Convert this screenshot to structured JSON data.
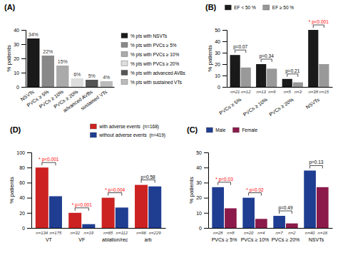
{
  "chart_data": [
    {
      "type": "bar",
      "title": "(A)",
      "y_label": "% patients",
      "categories": [
        "NSVTs",
        "PVCs ≥ 5%",
        "PVCs ≥ 10%",
        "PVCs ≥ 20%",
        "advanced AVBs",
        "sustained VTs"
      ],
      "series": [
        {
          "name": "% pts with NSVTs",
          "color": "#1a1a1a",
          "values": [
            34,
            null,
            null,
            null,
            null,
            null
          ],
          "value_labels": [
            "34%",
            null,
            null,
            null,
            null,
            null
          ]
        },
        {
          "name": "% pts with PVCs ≥ 5%",
          "color": "#888888",
          "values": [
            null,
            22,
            null,
            null,
            null,
            null
          ],
          "value_labels": [
            null,
            "22%",
            null,
            null,
            null,
            null
          ]
        },
        {
          "name": "% pts with PVCs ≥ 10%",
          "color": "#aaaaaa",
          "values": [
            null,
            null,
            15,
            null,
            null,
            null
          ],
          "value_labels": [
            null,
            null,
            "15%",
            null,
            null,
            null
          ]
        },
        {
          "name": "% pts with PVCs ≥ 20%",
          "color": "#dddddd",
          "values": [
            null,
            null,
            null,
            6,
            null,
            null
          ],
          "value_labels": [
            null,
            null,
            null,
            "6%",
            null,
            null
          ]
        },
        {
          "name": "% pts with advanced AVBs",
          "color": "#555555",
          "values": [
            null,
            null,
            null,
            null,
            5,
            null
          ],
          "value_labels": [
            null,
            null,
            null,
            null,
            "5%",
            null
          ]
        },
        {
          "name": "% pts with sustained VTs",
          "color": "#bbbbbb",
          "values": [
            null,
            null,
            null,
            null,
            null,
            4
          ],
          "value_labels": [
            null,
            null,
            null,
            null,
            null,
            "4%"
          ]
        }
      ],
      "stacked": true,
      "data_labels": true,
      "legend": "right",
      "ylim": [
        0,
        40
      ],
      "yticks": [
        0,
        10,
        20,
        30,
        40
      ]
    },
    {
      "type": "bar",
      "title": "(B)",
      "y_label": "% patients",
      "categories": [
        "PVCs ≥ 5%",
        "PVCs ≥ 10%",
        "PVCs ≥ 20%",
        "NSVTs"
      ],
      "series": [
        {
          "name": "EF < 50 %",
          "color": "#1a1a1a",
          "values": [
            28,
            20,
            7,
            50
          ],
          "n_labels": [
            "n=21",
            "n=13",
            "n=5",
            "n=38"
          ]
        },
        {
          "name": "EF ≥ 50 %",
          "color": "#999999",
          "values": [
            17,
            16,
            4,
            20
          ],
          "n_labels": [
            "n=12",
            "n=9",
            "n=3",
            "n=15"
          ]
        }
      ],
      "annotations": [
        {
          "text": "p=0.07",
          "color": "black"
        },
        {
          "text": "p=0.34",
          "color": "black"
        },
        {
          "text": "p=0.21",
          "color": "black"
        },
        {
          "text": "* p<0.001",
          "color": "red"
        }
      ],
      "legend": "top",
      "ylim": [
        0,
        50
      ],
      "yticks": [
        0,
        10,
        20,
        30,
        40,
        50
      ]
    },
    {
      "type": "bar",
      "title": "(C)",
      "y_label": "% patients",
      "categories": [
        "PVCs ≥ 5%",
        "PVCs ≥ 10%",
        "PVCs ≥ 20%",
        "NSVTs"
      ],
      "series": [
        {
          "name": "Male",
          "color": "#1f3d91",
          "values": [
            27,
            20,
            8,
            38
          ],
          "n_labels": [
            "n=28",
            "n=20",
            "n=7",
            "n=40"
          ]
        },
        {
          "name": "Female",
          "color": "#8b1a4a",
          "values": [
            13,
            6,
            3,
            27
          ],
          "n_labels": [
            "n=8",
            "n=4",
            "n=2",
            "n=16"
          ]
        }
      ],
      "annotations": [
        {
          "text": "* p=0.03",
          "color": "red"
        },
        {
          "text": "* p=0.02",
          "color": "red"
        },
        {
          "text": "p=0.49",
          "color": "black"
        },
        {
          "text": "p=0.13",
          "color": "black"
        }
      ],
      "legend": "top",
      "ylim": [
        0,
        50
      ],
      "yticks": [
        0,
        10,
        20,
        30,
        40,
        50
      ]
    },
    {
      "type": "bar",
      "title": "(D)",
      "y_label": "% patients",
      "categories": [
        "VT",
        "VF",
        "ablation/rec",
        "arb"
      ],
      "series": [
        {
          "name": "with adverse events  (n=168)",
          "color": "#cc2222",
          "values": [
            80,
            20,
            40,
            57
          ],
          "n_labels": [
            "n=134",
            "n=32",
            "n=65",
            "n=96"
          ]
        },
        {
          "name": "without adverse events  (n=419)",
          "color": "#1f3d91",
          "values": [
            42,
            5,
            27,
            55
          ],
          "n_labels": [
            "n=175",
            "n=19",
            "n=112",
            "n=229"
          ]
        }
      ],
      "annotations": [
        {
          "text": "* p<0.001",
          "color": "red"
        },
        {
          "text": "* p=0.001",
          "color": "red"
        },
        {
          "text": "* p=0.004",
          "color": "red"
        },
        {
          "text": "p=0.58",
          "color": "black"
        }
      ],
      "legend": "top",
      "ylim": [
        0,
        100
      ],
      "yticks": [
        0,
        20,
        40,
        60,
        80,
        100
      ]
    }
  ]
}
